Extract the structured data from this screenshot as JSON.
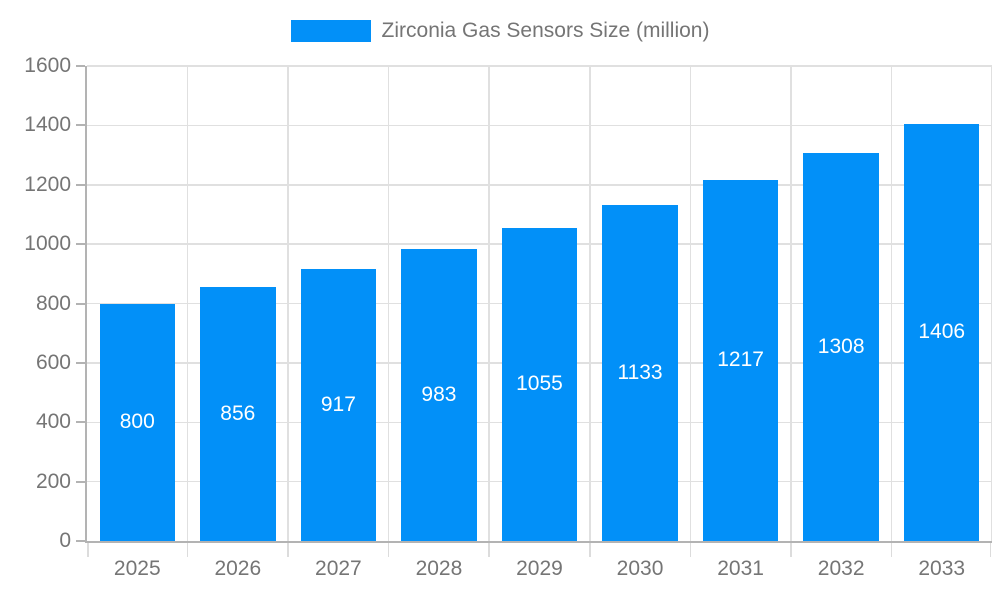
{
  "chart_data": {
    "type": "bar",
    "title": "Zirconia Gas Sensors Size (million)",
    "legend": {
      "label": "Zirconia Gas Sensors Size (million)",
      "position": "top-center"
    },
    "categories": [
      "2025",
      "2026",
      "2027",
      "2028",
      "2029",
      "2030",
      "2031",
      "2032",
      "2033"
    ],
    "series": [
      {
        "name": "Zirconia Gas Sensors Size (million)",
        "values": [
          800,
          856,
          917,
          983,
          1055,
          1133,
          1217,
          1308,
          1406
        ]
      }
    ],
    "bar_value_labels": [
      "800",
      "856",
      "917",
      "983",
      "1055",
      "1133",
      "1217",
      "1308",
      "1406"
    ],
    "xlabel": "",
    "ylabel": "",
    "ylim": [
      0,
      1600
    ],
    "ytick_step": 200,
    "ytick_labels": [
      "0",
      "200",
      "400",
      "600",
      "800",
      "1000",
      "1200",
      "1400",
      "1600"
    ],
    "grid": true,
    "colors": {
      "bar": "#0290f8",
      "bar_label_text": "#ffffff",
      "axis_text": "#757575",
      "legend_text": "#757575",
      "gridline": "#e0e0e0",
      "axis_line": "#b3b3b3",
      "x_tick": "#dcdcdc",
      "background": "#ffffff"
    }
  }
}
